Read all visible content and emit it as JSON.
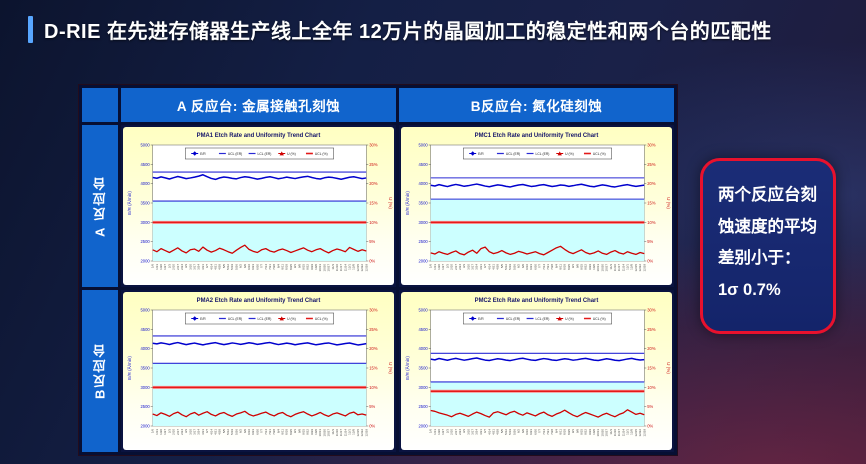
{
  "slide": {
    "title": "D-RIE  在先进存储器生产线上全年 12万片的晶圆加工的稳定性和两个台的匹配性"
  },
  "table": {
    "col_headers": [
      "A 反应台: 金属接触孔刻蚀",
      "B反应台: 氮化硅刻蚀"
    ],
    "row_headers": [
      "A 反应台",
      "B反应台"
    ]
  },
  "callout": {
    "text": "两个反应台刻蚀速度的平均差别小于：",
    "stat": "1σ  0.7%",
    "border_color": "#e8112d",
    "fill_color": "#16266b"
  },
  "colors": {
    "header_blue": "#1164cc",
    "plot_cyan": "#ccffff",
    "er_series_blue": "#0000cd",
    "control_line_blue": "#2a2ad4",
    "spec_line_red": "#e31a1a",
    "uniformity_series_red": "#cf0000",
    "accent_bar": "#58a6ff"
  },
  "chart_data": {
    "x_labels": [
      "1/6",
      "1/13",
      "1/20",
      "1/27",
      "2/3",
      "2/10",
      "2/17",
      "2/24",
      "3/3",
      "3/10",
      "3/17",
      "3/24",
      "3/31",
      "4/7",
      "4/14",
      "4/21",
      "4/28",
      "5/5",
      "5/12",
      "5/19",
      "5/26",
      "6/2",
      "6/9",
      "6/16",
      "6/23",
      "6/30",
      "7/7",
      "7/14",
      "7/21",
      "7/28",
      "8/4",
      "8/11",
      "8/18",
      "8/25",
      "9/1",
      "9/8",
      "9/15",
      "9/22",
      "9/29",
      "10/6",
      "10/13",
      "10/20",
      "10/27",
      "11/3",
      "11/10",
      "11/17",
      "11/24",
      "12/1",
      "12/8",
      "12/15",
      "12/22",
      "12/29"
    ],
    "charts": [
      {
        "id": "pma1",
        "type": "line",
        "title": "PMA1 Etch Rate and Uniformity Trend Chart",
        "ylabel_left": "E/R (Å/min)",
        "ylabel_right": "U (%)",
        "ylim_left": [
          2000,
          5000
        ],
        "ylim_right": [
          0,
          30
        ],
        "yticks_left": [
          2000,
          2500,
          3000,
          3500,
          4000,
          4500,
          5000
        ],
        "yticks_right": [
          "0%",
          "5%",
          "10%",
          "15%",
          "20%",
          "25%",
          "30%"
        ],
        "legend": [
          "E/R",
          "UCL (ER)",
          "LCL (ER)",
          "U (%)",
          "UCL (%)"
        ],
        "lines": {
          "ucl_er": 4300,
          "lcl_er": 3550,
          "usl_u_pct": 10
        },
        "series": [
          {
            "name": "E/R",
            "axis": "left",
            "color": "#0000cd",
            "values": [
              4160,
              4140,
              4175,
              4150,
              4120,
              4155,
              4185,
              4160,
              4130,
              4148,
              4170,
              4195,
              4230,
              4180,
              4135,
              4110,
              4150,
              4172,
              4160,
              4138,
              4125,
              4158,
              4180,
              4165,
              4142,
              4118,
              4136,
              4162,
              4178,
              4155,
              4128,
              4145,
              4168,
              4150,
              4132,
              4156,
              4175,
              4190,
              4160,
              4135,
              4120,
              4152,
              4170,
              4158,
              4136,
              4115,
              4140,
              4165,
              4180,
              4155,
              4130,
              4148
            ]
          },
          {
            "name": "U (%)",
            "axis": "right",
            "color": "#cf0000",
            "values": [
              2.9,
              2.4,
              3.2,
              2.7,
              2.2,
              2.8,
              3.4,
              2.6,
              2.1,
              2.9,
              3.1,
              2.5,
              3.6,
              2.8,
              2.3,
              2.7,
              3.3,
              2.9,
              2.4,
              2.0,
              2.8,
              3.5,
              4.1,
              3.0,
              2.5,
              2.2,
              2.9,
              3.2,
              2.6,
              2.3,
              2.8,
              3.1,
              2.7,
              2.2,
              2.6,
              3.0,
              3.4,
              2.8,
              2.4,
              2.9,
              3.2,
              2.6,
              2.1,
              2.7,
              3.1,
              2.8,
              2.4,
              3.5,
              3.0,
              2.5,
              2.9,
              2.6
            ]
          }
        ]
      },
      {
        "id": "pmc1",
        "type": "line",
        "title": "PMC1 Etch Rate and Uniformity Trend Chart",
        "ylabel_left": "E/R (Å/min)",
        "ylabel_right": "U (%)",
        "ylim_left": [
          2000,
          5000
        ],
        "ylim_right": [
          0,
          30
        ],
        "yticks_left": [
          2000,
          2500,
          3000,
          3500,
          4000,
          4500,
          5000
        ],
        "yticks_right": [
          "0%",
          "5%",
          "10%",
          "15%",
          "20%",
          "25%",
          "30%"
        ],
        "legend": [
          "E/R",
          "UCL (ER)",
          "LCL (ER)",
          "U (%)",
          "UCL (%)"
        ],
        "lines": {
          "ucl_er": 4150,
          "lcl_er": 3600,
          "usl_u_pct": 10
        },
        "series": [
          {
            "name": "E/R",
            "axis": "left",
            "color": "#0000cd",
            "values": [
              3960,
              3940,
              3975,
              3950,
              3925,
              3955,
              3980,
              3958,
              3932,
              3948,
              3970,
              3990,
              3965,
              3938,
              3920,
              3945,
              3968,
              3955,
              3930,
              3915,
              3942,
              3965,
              3978,
              3952,
              3928,
              3940,
              3962,
              3975,
              3950,
              3926,
              3944,
              3966,
              3955,
              3930,
              3948,
              3970,
              3985,
              3958,
              3934,
              3920,
              3946,
              3968,
              3952,
              3928,
              3915,
              3938,
              3960,
              3974,
              3950,
              3930,
              3945,
              3962
            ]
          },
          {
            "name": "U (%)",
            "axis": "right",
            "color": "#cf0000",
            "values": [
              2.1,
              1.8,
              2.4,
              2.0,
              1.7,
              2.2,
              2.6,
              1.9,
              1.6,
              2.3,
              2.8,
              2.0,
              3.2,
              3.6,
              2.4,
              1.9,
              2.2,
              2.7,
              2.1,
              1.7,
              2.0,
              2.5,
              2.2,
              1.8,
              2.1,
              2.4,
              1.9,
              1.6,
              2.2,
              2.8,
              3.4,
              3.8,
              3.0,
              2.3,
              1.9,
              2.4,
              2.9,
              2.2,
              1.8,
              2.1,
              2.6,
              2.0,
              1.7,
              2.3,
              2.7,
              2.1,
              1.8,
              2.4,
              2.0,
              1.7,
              2.2,
              1.9
            ]
          }
        ]
      },
      {
        "id": "pma2",
        "type": "line",
        "title": "PMA2 Etch Rate and Uniformity Trend Chart",
        "ylabel_left": "E/R (Å/min)",
        "ylabel_right": "U (%)",
        "ylim_left": [
          2000,
          5000
        ],
        "ylim_right": [
          0,
          30
        ],
        "yticks_left": [
          2000,
          2500,
          3000,
          3500,
          4000,
          4500,
          5000
        ],
        "yticks_right": [
          "0%",
          "5%",
          "10%",
          "15%",
          "20%",
          "25%",
          "30%"
        ],
        "legend": [
          "E/R",
          "UCL (ER)",
          "LCL (ER)",
          "U (%)",
          "UCL (%)"
        ],
        "lines": {
          "ucl_er": 4330,
          "lcl_er": 3620,
          "usl_u_pct": 10
        },
        "series": [
          {
            "name": "E/R",
            "axis": "left",
            "color": "#0000cd",
            "values": [
              4140,
              4125,
              4150,
              4132,
              4108,
              4136,
              4158,
              4130,
              4105,
              4128,
              4145,
              4120,
              4098,
              4122,
              4140,
              4155,
              4128,
              4104,
              4125,
              4148,
              4132,
              4110,
              4130,
              4152,
              4136,
              4112,
              4128,
              4146,
              4158,
              4130,
              4106,
              4124,
              4142,
              4128,
              4102,
              4120,
              4138,
              4150,
              4125,
              4100,
              4118,
              4136,
              4148,
              4122,
              4098,
              4115,
              4134,
              4146,
              4120,
              4096,
              4112,
              4130
            ]
          },
          {
            "name": "U (%)",
            "axis": "right",
            "color": "#cf0000",
            "values": [
              3.1,
              2.7,
              3.4,
              3.0,
              2.5,
              3.2,
              3.6,
              2.9,
              2.4,
              3.1,
              3.5,
              2.8,
              3.3,
              3.7,
              3.0,
              2.6,
              3.2,
              3.5,
              2.9,
              2.5,
              3.1,
              3.4,
              3.8,
              3.0,
              2.6,
              2.9,
              3.3,
              3.6,
              3.0,
              2.6,
              3.2,
              3.5,
              2.8,
              2.4,
              3.0,
              3.4,
              3.7,
              3.1,
              2.6,
              3.0,
              3.5,
              2.9,
              2.5,
              3.1,
              3.4,
              3.0,
              2.6,
              3.3,
              3.6,
              2.9,
              3.1,
              2.8
            ]
          }
        ]
      },
      {
        "id": "pmc2",
        "type": "line",
        "title": "PMC2 Etch Rate and Uniformity Trend Chart",
        "ylabel_left": "E/R (Å/min)",
        "ylabel_right": "U (%)",
        "ylim_left": [
          2000,
          5000
        ],
        "ylim_right": [
          0,
          30
        ],
        "yticks_left": [
          2000,
          2500,
          3000,
          3500,
          4000,
          4500,
          5000
        ],
        "yticks_right": [
          "0%",
          "5%",
          "10%",
          "15%",
          "20%",
          "25%",
          "30%"
        ],
        "legend": [
          "E/R",
          "UCL (ER)",
          "LCL (ER)",
          "U (%)",
          "UCL (%)"
        ],
        "lines": {
          "ucl_er": 3880,
          "lcl_er": 3140,
          "usl_u_pct": 9
        },
        "series": [
          {
            "name": "E/R",
            "axis": "left",
            "color": "#0000cd",
            "values": [
              3730,
              3710,
              3745,
              3722,
              3700,
              3728,
              3750,
              3725,
              3702,
              3720,
              3742,
              3758,
              3730,
              3705,
              3695,
              3718,
              3740,
              3726,
              3704,
              3692,
              3715,
              3738,
              3752,
              3728,
              3706,
              3698,
              3722,
              3744,
              3730,
              3708,
              3696,
              3720,
              3740,
              3725,
              3702,
              3715,
              3736,
              3750,
              3726,
              3704,
              3694,
              3716,
              3738,
              3724,
              3700,
              3690,
              3712,
              3734,
              3748,
              3722,
              3708,
              3718
            ]
          },
          {
            "name": "U (%)",
            "axis": "right",
            "color": "#cf0000",
            "values": [
              4.0,
              3.8,
              3.4,
              3.1,
              2.8,
              2.4,
              3.0,
              3.3,
              2.9,
              2.5,
              3.1,
              3.6,
              3.2,
              2.7,
              2.3,
              3.4,
              3.7,
              3.3,
              2.9,
              3.5,
              3.8,
              3.2,
              2.8,
              3.4,
              3.0,
              2.6,
              3.2,
              3.6,
              2.9,
              2.5,
              3.1,
              3.5,
              4.1,
              3.4,
              2.8,
              2.4,
              3.0,
              3.5,
              3.1,
              2.7,
              2.3,
              2.9,
              3.3,
              2.8,
              2.4,
              3.0,
              3.4,
              4.2,
              3.6,
              3.0,
              3.3,
              2.9
            ]
          }
        ]
      }
    ]
  }
}
